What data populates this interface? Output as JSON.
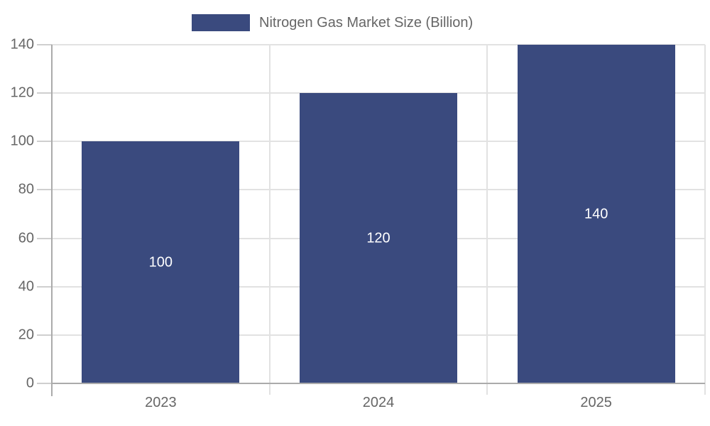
{
  "legend": {
    "label": "Nitrogen Gas Market Size (Billion)"
  },
  "colors": {
    "bar": "#3A4A7E",
    "bar_label": "#FFFFFF",
    "grid": "#E2E2E2",
    "tick": "#CFCFCF",
    "axis": "#ABABAB",
    "text": "#666666",
    "background": "#FFFFFF"
  },
  "chart_data": {
    "type": "bar",
    "title": "Nitrogen Gas Market Size (Billion)",
    "categories": [
      "2023",
      "2024",
      "2025"
    ],
    "values": [
      100,
      120,
      140
    ],
    "xlabel": "",
    "ylabel": "",
    "ylim": [
      0,
      140
    ],
    "yticks": [
      0,
      20,
      40,
      60,
      80,
      100,
      120,
      140
    ],
    "grid": true,
    "legend_position": "top-center",
    "bar_value_labels_inside": true
  }
}
